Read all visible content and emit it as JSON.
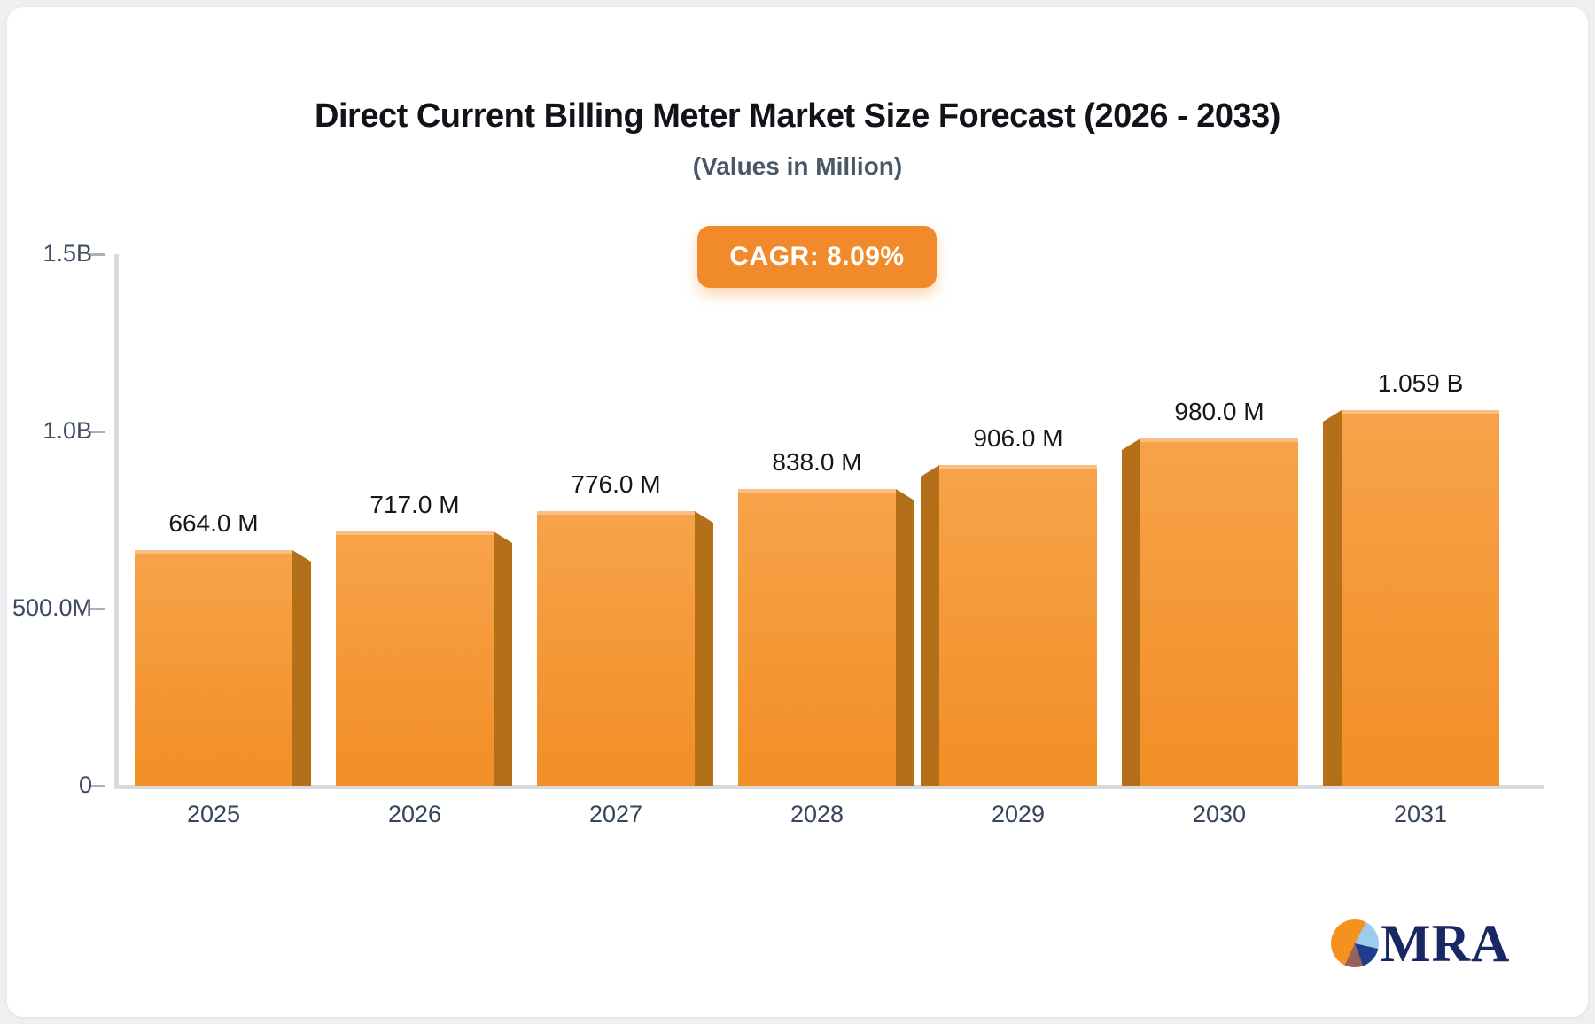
{
  "header": {
    "title": "Direct Current Billing Meter Market Size Forecast (2026 - 2033)",
    "subtitle": "(Values in Million)",
    "cagr_badge": "CAGR: 8.09%"
  },
  "chart_data": {
    "type": "bar",
    "title": "Direct Current Billing Meter Market Size Forecast (2026 - 2033)",
    "subtitle": "(Values in Million)",
    "cagr_text": "CAGR: 8.09%",
    "cagr_percent": 8.09,
    "categories": [
      "2025",
      "2026",
      "2027",
      "2028",
      "2029",
      "2030",
      "2031"
    ],
    "values_millions": [
      664,
      717,
      776,
      838,
      906,
      980,
      1059
    ],
    "value_labels": [
      "664.0 M",
      "717.0 M",
      "776.0 M",
      "838.0 M",
      "906.0 M",
      "980.0 M",
      "1.059 B"
    ],
    "y_axis": {
      "min_millions": 0,
      "max_millions": 1500,
      "ticks": [
        {
          "value_millions": 0,
          "label": "0"
        },
        {
          "value_millions": 500,
          "label": "500.0M"
        },
        {
          "value_millions": 1000,
          "label": "1.0B"
        },
        {
          "value_millions": 1500,
          "label": "1.5B"
        }
      ]
    },
    "grid": false,
    "legend": false,
    "colors": {
      "bar_face_top": "#F7A34A",
      "bar_face_bottom": "#F28E26",
      "bar_side": "#B37019",
      "axis_line": "#D7DADE",
      "tick": "#ACB1B8",
      "value_label": "#14171C",
      "axis_label": "#3E4A5F",
      "badge_bg": "#F18A2B",
      "badge_text": "#FFFFFF"
    }
  },
  "footer": {
    "logo_text": "MRA",
    "logo_pie_colors": {
      "orange": "#F5921F",
      "light_blue": "#9CCDEE",
      "navy": "#1F3D8F",
      "maroon": "#96625F"
    }
  }
}
